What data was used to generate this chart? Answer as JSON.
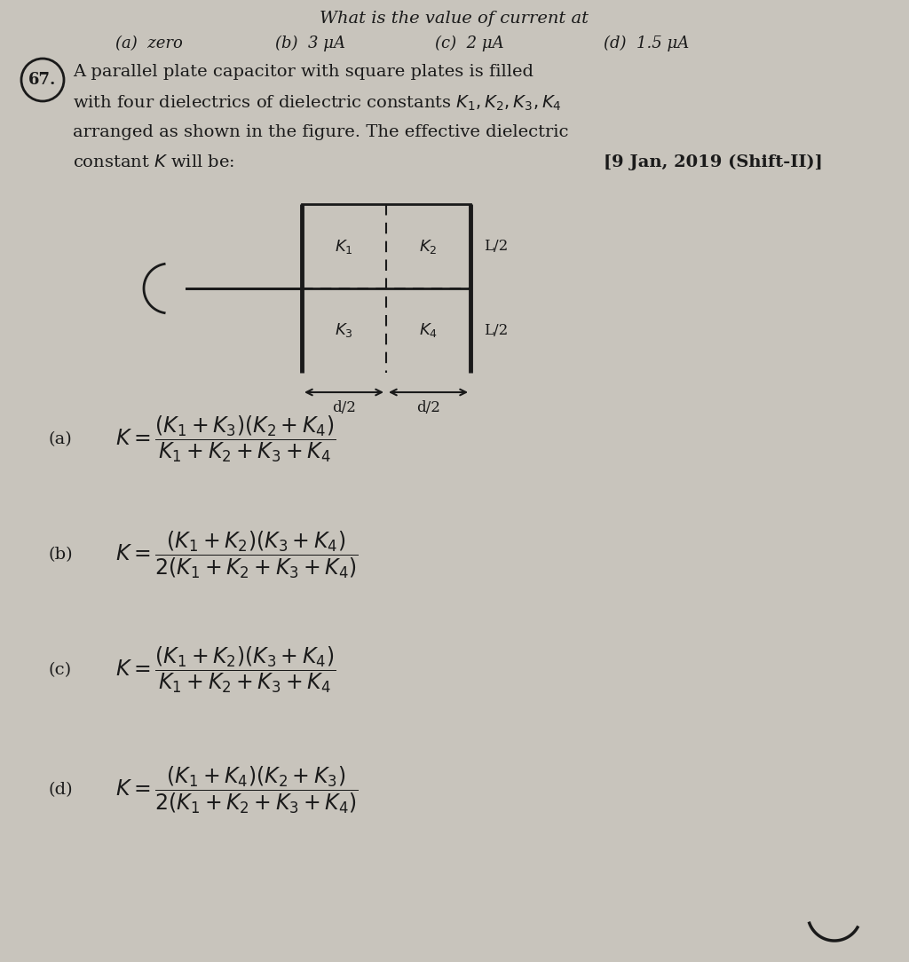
{
  "bg_color": "#c8c4bc",
  "text_color": "#1a1a1a",
  "fig_width": 10.24,
  "fig_height": 10.84,
  "header1": "What is the value of current at",
  "header2_italic": "(a)  zero",
  "header2_b": "(b)  3 μA",
  "header2_c": "(c)  2 μA",
  "header2_d": "(d)  1.5 μA",
  "q_num": "67.",
  "q_line1": "A parallel plate capacitor with square plates is filled",
  "q_line2": "with four dielectrics of dielectric constants $K_1, K_2, K_3, K_4$",
  "q_line3": "arranged as shown in the figure. The effective dielectric",
  "q_line4a": "constant $K$ will be:",
  "q_line4b": "[9 Jan, 2019 (Shift-II)]",
  "opt_a_label": "(a)",
  "opt_a_formula": "$K = \\dfrac{(K_1+K_3)(K_2+K_4)}{K_1+K_2+K_3+K_4}$",
  "opt_b_label": "(b)",
  "opt_b_formula": "$K = \\dfrac{(K_1+K_2)(K_3+K_4)}{2(K_1+K_2+K_3+K_4)}$",
  "opt_c_label": "(c)",
  "opt_c_formula": "$K = \\dfrac{(K_1+K_2)(K_3+K_4)}{K_1+K_2+K_3+K_4}$",
  "opt_d_label": "(d)",
  "opt_d_formula": "$K = \\dfrac{(K_1+K_4)(K_2+K_3)}{2(K_1+K_2+K_3+K_4)}$"
}
